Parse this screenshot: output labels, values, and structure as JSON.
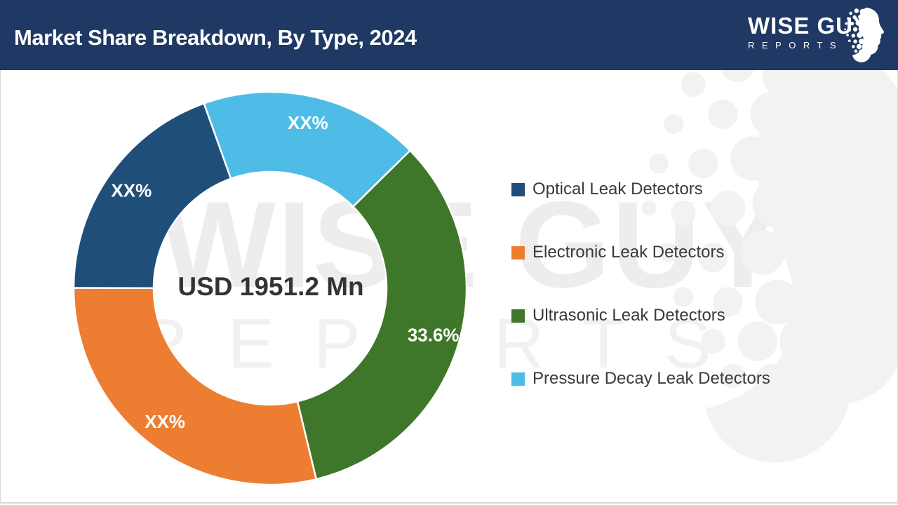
{
  "header": {
    "title": "Market Share Breakdown, By Type, 2024",
    "logo": {
      "name": "WISE GUY",
      "sub": "REPORTS"
    }
  },
  "watermark": {
    "line1": "WISE GUY",
    "line2": "REPORTS"
  },
  "colors": {
    "header_bg": "#1F3864",
    "border": "#D9D9D9",
    "center_text": "#333333",
    "legend_text": "#3A3A3A",
    "watermark": "#EDEDED"
  },
  "chart_data": {
    "type": "pie",
    "subtype": "donut",
    "title": "Market Share Breakdown, By Type, 2024",
    "center_label": "USD 1951.2 Mn",
    "units": "percent of market share",
    "start_angle_deg_clockwise_from_top": -19.7,
    "clockwise_order": [
      "pressure_decay",
      "ultrasonic",
      "electronic",
      "optical"
    ],
    "legend_position": "right",
    "segments": [
      {
        "id": "optical",
        "name": "Optical Leak Detectors",
        "value_pct": 19.5,
        "displayed_label": "XX%",
        "color": "#1F4E79"
      },
      {
        "id": "electronic",
        "name": "Electronic Leak Detectors",
        "value_pct": 28.8,
        "displayed_label": "XX%",
        "color": "#ED7D31"
      },
      {
        "id": "ultrasonic",
        "name": "Ultrasonic Leak Detectors",
        "value_pct": 33.6,
        "displayed_label": "33.6%",
        "color": "#3F772A"
      },
      {
        "id": "pressure_decay",
        "name": "Pressure Decay Leak Detectors",
        "value_pct": 18.1,
        "displayed_label": "XX%",
        "color": "#4FBCE8"
      }
    ]
  },
  "legend": {
    "order": [
      "optical",
      "electronic",
      "ultrasonic",
      "pressure_decay"
    ]
  }
}
